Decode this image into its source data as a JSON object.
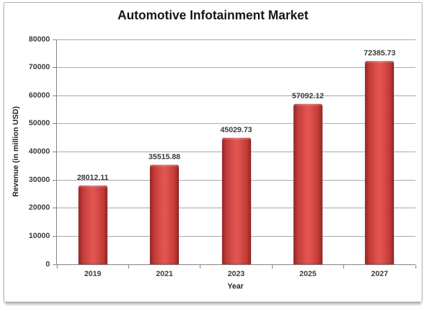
{
  "chart_data": {
    "type": "bar",
    "title": "Automotive Infotainment Market",
    "xlabel": "Year",
    "ylabel": "Revenue (in million USD)",
    "categories": [
      "2019",
      "2021",
      "2023",
      "2025",
      "2027"
    ],
    "values": [
      28012.11,
      35515.88,
      45029.73,
      57092.12,
      72385.73
    ],
    "data_labels": [
      "28012.11",
      "35515.88",
      "45029.73",
      "57092.12",
      "72385.73"
    ],
    "series_name": "Revenue (in million USD)",
    "ylim": [
      0,
      80000
    ],
    "yticks": [
      0,
      10000,
      20000,
      30000,
      40000,
      50000,
      60000,
      70000,
      80000
    ],
    "grid": true,
    "legend": false,
    "colors": {
      "bar_center": "#e15450",
      "bar_mid": "#c23b38",
      "bar_edge": "#8e2523",
      "gridline": "#a6a6a6",
      "axis_line": "#7f7f7f",
      "tick_text": "#3b3b3b",
      "title_text": "#161616",
      "frame_border": "#a9a9a9",
      "background": "#ffffff"
    }
  }
}
